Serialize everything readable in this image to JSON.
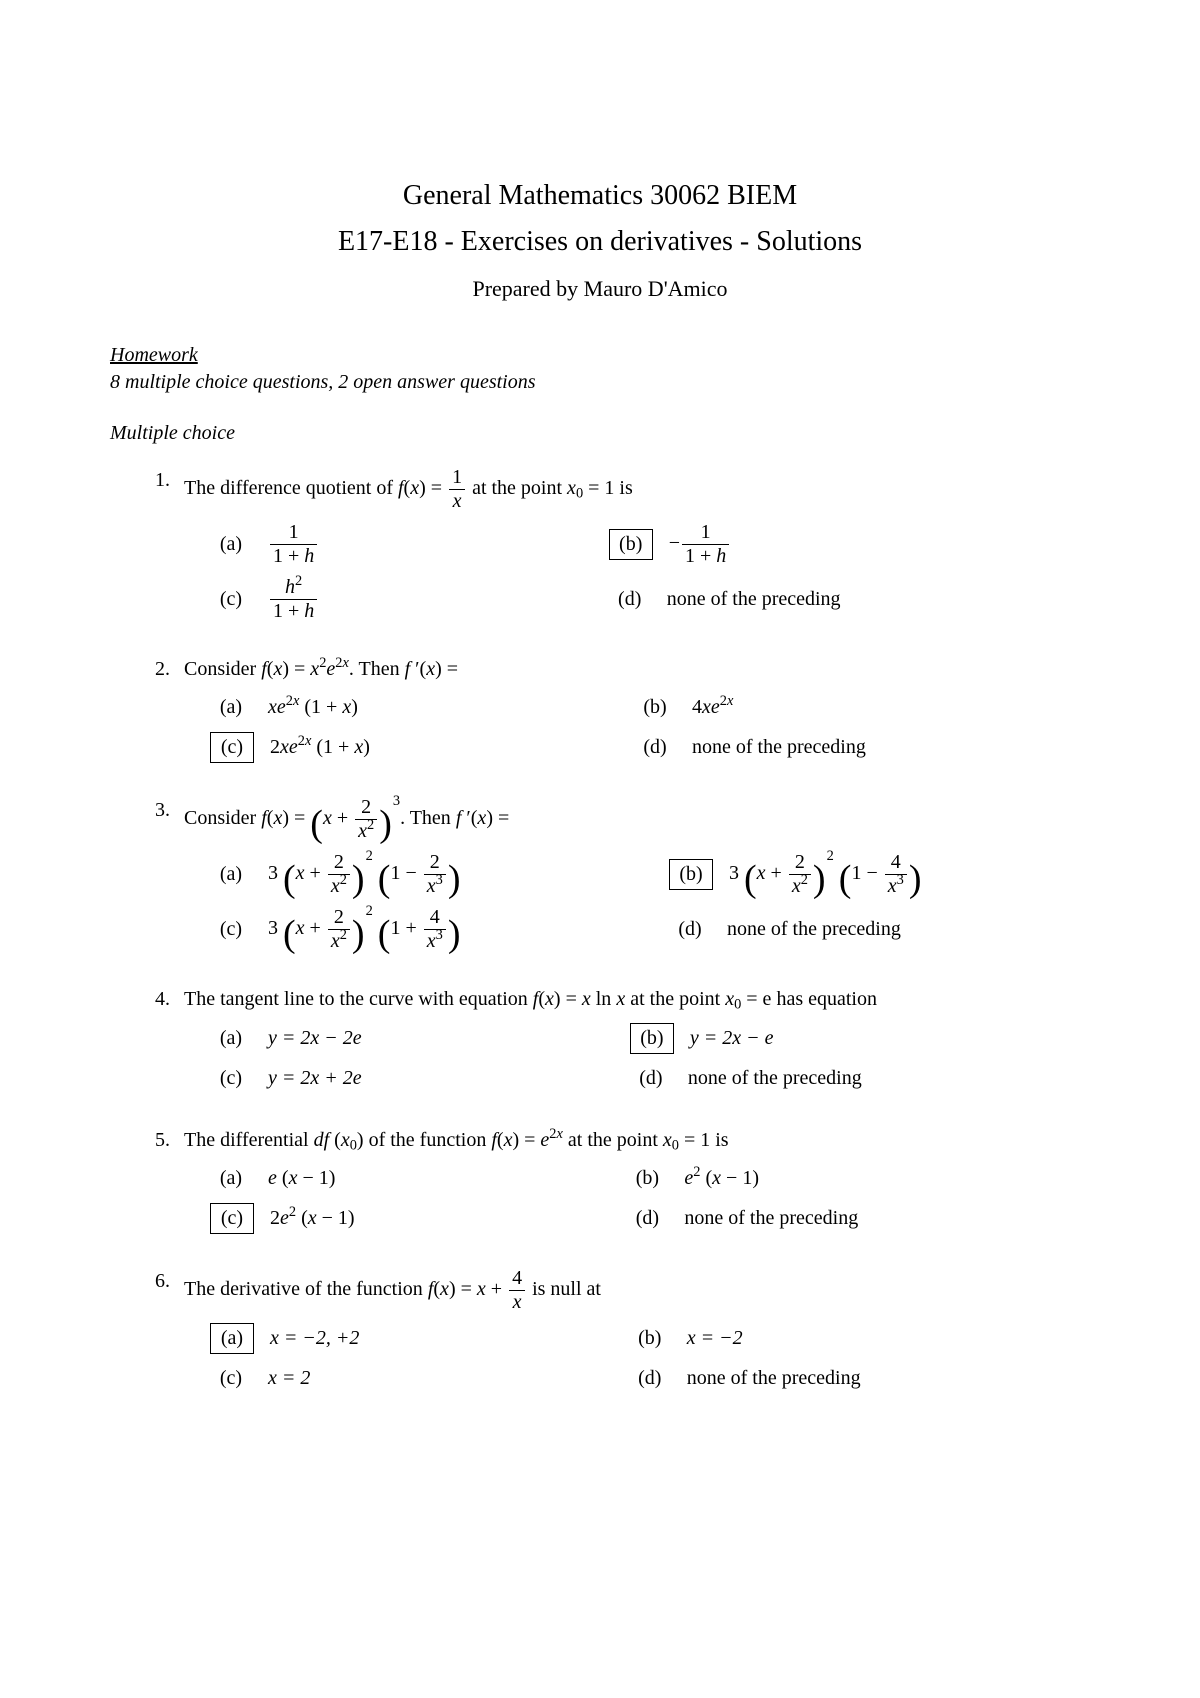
{
  "title1": "General Mathematics 30062 BIEM",
  "title2": "E17-E18 - Exercises on derivatives - Solutions",
  "title3": "Prepared by Mauro D'Amico",
  "section_label": "Homework",
  "section_sub": "8 multiple choice questions, 2 open answer questions",
  "heading": "Multiple choice",
  "none": "none of the preceding",
  "labels": {
    "a": "(a)",
    "b": "(b)",
    "c": "(c)",
    "d": "(d)"
  },
  "q1": {
    "num": "1.",
    "stem_pre": "The difference quotient of ",
    "stem_post": " at the point ",
    "x0": "x",
    "eq1": " = 1 is"
  },
  "q2": {
    "num": "2.",
    "stem_pre": "Consider ",
    "then": ". Then ",
    "a": "xe",
    "a2": " (1 + x)",
    "b": "4xe",
    "c": "2xe",
    "c2": " (1 + x)"
  },
  "q3": {
    "num": "3.",
    "stem_pre": "Consider ",
    "then": ". Then "
  },
  "q4": {
    "num": "4.",
    "stem": "The tangent line to the curve with equation ",
    "mid": " at the point ",
    "post": " = e has equation",
    "a": "y = 2x − 2e",
    "b": "y = 2x − e",
    "c": "y = 2x + 2e"
  },
  "q5": {
    "num": "5.",
    "stem_pre": "The differential ",
    "stem_mid": " of the function ",
    "stem_post": " at the point ",
    "eq1": " = 1 is",
    "a": "e (x − 1)",
    "b_pre": "e",
    "b_post": " (x − 1)",
    "c_pre": "2e",
    "c_post": " (x − 1)"
  },
  "q6": {
    "num": "6.",
    "stem_pre": "The derivative of the function ",
    "stem_post": " is null at",
    "a": "x = −2, +2",
    "b": "x = −2",
    "c": "x = 2"
  }
}
